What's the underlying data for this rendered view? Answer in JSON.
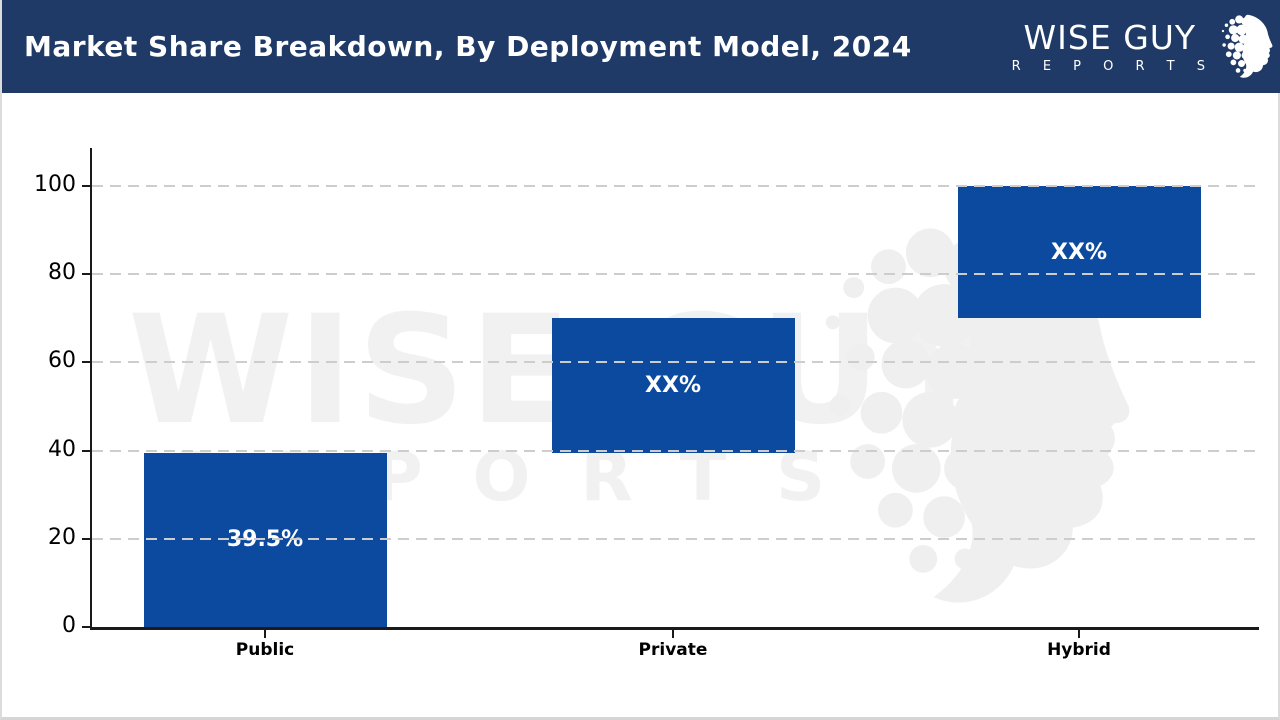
{
  "header": {
    "title": "Market Share Breakdown, By Deployment Model, 2024",
    "logo": {
      "line1": "WISE GUY",
      "line2": "R E P O R T S"
    }
  },
  "watermark": {
    "line1": "WISE GUY",
    "line2": "REPORTS"
  },
  "colors": {
    "header_bg": "#1f3a66",
    "bar_fill": "#0c4aa0",
    "grid_line": "#cdcdcd",
    "axis_line": "#1a1a1a",
    "watermark": "#f1f1f1",
    "bar_label": "#ffffff"
  },
  "chart_data": {
    "type": "waterfall",
    "title": "Market Share Breakdown, By Deployment Model, 2024",
    "categories": [
      "Public",
      "Private",
      "Hybrid"
    ],
    "segments": [
      {
        "category": "Public",
        "start": 0,
        "end": 39.5,
        "label": "39.5%"
      },
      {
        "category": "Private",
        "start": 39.5,
        "end": 70,
        "label": "XX%"
      },
      {
        "category": "Hybrid",
        "start": 70,
        "end": 100,
        "label": "XX%"
      }
    ],
    "xlabel": "",
    "ylabel": "",
    "ylim": [
      0,
      100
    ],
    "yticks": [
      0,
      20,
      40,
      60,
      80,
      100
    ],
    "grid": "dashed-horizontal",
    "legend": "none"
  }
}
